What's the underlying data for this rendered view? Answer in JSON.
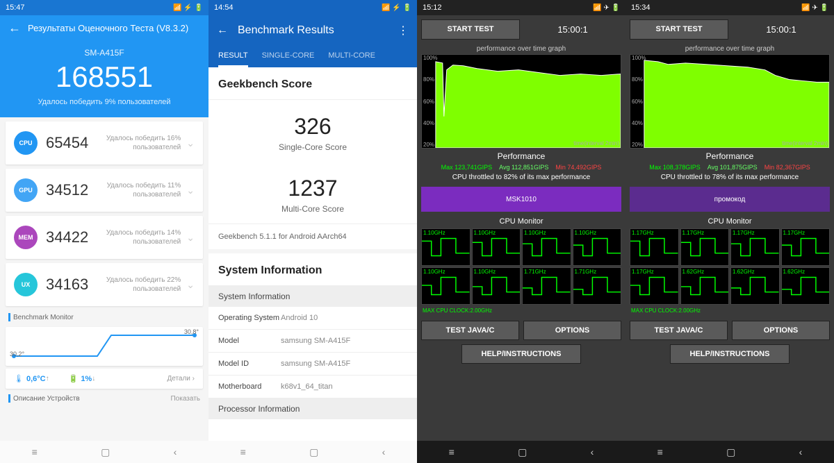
{
  "p1": {
    "status_time": "15:47",
    "title": "Результаты Оценочного Теста (V8.3.2)",
    "device": "SM-A415F",
    "total_score": "168551",
    "subtitle": "Удалось победить 9% пользователей",
    "cards": [
      {
        "badge": "CPU",
        "score": "65454",
        "pct": "Удалось победить 16%",
        "sub": "пользователей"
      },
      {
        "badge": "GPU",
        "score": "34512",
        "pct": "Удалось победить 11%",
        "sub": "пользователей"
      },
      {
        "badge": "MEM",
        "score": "34422",
        "pct": "Удалось победить 14%",
        "sub": "пользователей"
      },
      {
        "badge": "UX",
        "score": "34163",
        "pct": "Удалось победить 22%",
        "sub": "пользователей"
      }
    ],
    "monitor_label": "Benchmark Monitor",
    "chart": {
      "t0": "30,2°",
      "t1": "30,8°"
    },
    "temp_delta": "0,6°C",
    "battery_delta": "1%",
    "details": "Детали",
    "desc_label": "Описание Устройств",
    "show": "Показать"
  },
  "p2": {
    "status_time": "14:54",
    "title": "Benchmark Results",
    "tabs": [
      "RESULT",
      "SINGLE-CORE",
      "MULTI-CORE"
    ],
    "section": "Geekbench Score",
    "single": {
      "score": "326",
      "label": "Single-Core Score"
    },
    "multi": {
      "score": "1237",
      "label": "Multi-Core Score"
    },
    "version": "Geekbench 5.1.1 for Android AArch64",
    "sysinfo_h": "System Information",
    "sysinfo_sub": "System Information",
    "rows": [
      {
        "k": "Operating System",
        "v": "Android 10"
      },
      {
        "k": "Model",
        "v": "samsung SM-A415F"
      },
      {
        "k": "Model ID",
        "v": "samsung SM-A415F"
      },
      {
        "k": "Motherboard",
        "v": "k68v1_64_titan"
      }
    ],
    "proc_h": "Processor Information"
  },
  "p3": {
    "status_time": "15:12",
    "start": "START TEST",
    "timer": "15:00:1",
    "graph_label": "performance over time graph",
    "time_label": "time(interval 2min)",
    "ylabels": [
      "100%",
      "80%",
      "60%",
      "40%",
      "20%"
    ],
    "perf_h": "Performance",
    "max": "Max 123,741GIPS",
    "avg": "Avg 112,851GIPS",
    "min": "Min 74,492GIPS",
    "throttle": "CPU throttled to 82% of its max performance",
    "ad_color": "#7b2cbf",
    "ad_text": "МSK1010",
    "cpu_h": "CPU Monitor",
    "freqs_top": [
      "1.10GHz",
      "1.10GHz",
      "1.10GHz",
      "1.10GHz"
    ],
    "freqs_bot": [
      "1.10GHz",
      "1.10GHz",
      "1.71GHz",
      "1.71GHz"
    ],
    "maxclock": "MAX CPU CLOCK:2.00GHz",
    "btn_java": "TEST JAVA/C",
    "btn_opt": "OPTIONS",
    "btn_help": "HELP/INSTRUCTIONS"
  },
  "p4": {
    "status_time": "15:34",
    "start": "START TEST",
    "timer": "15:00:1",
    "graph_label": "performance over time graph",
    "time_label": "time(interval 2min)",
    "ylabels": [
      "100%",
      "80%",
      "60%",
      "40%",
      "20%"
    ],
    "perf_h": "Performance",
    "max": "Max 108,378GIPS",
    "avg": "Avg 101,875GIPS",
    "min": "Min 82,367GIPS",
    "throttle": "CPU throttled to 78% of its max performance",
    "ad_color": "#5b2c8f",
    "ad_text": "промокод",
    "cpu_h": "CPU Monitor",
    "freqs_top": [
      "1.17GHz",
      "1.17GHz",
      "1.17GHz",
      "1.17GHz"
    ],
    "freqs_bot": [
      "1.17GHz",
      "1.62GHz",
      "1.62GHz",
      "1.62GHz"
    ],
    "maxclock": "MAX CPU CLOCK:2.00GHz",
    "btn_java": "TEST JAVA/C",
    "btn_opt": "OPTIONS",
    "btn_help": "HELP/INSTRUCTIONS"
  },
  "colors": {
    "green_max": "#00ff00",
    "green_avg": "#66ff66",
    "red_min": "#ff4444",
    "graph_fill": "#7fff00"
  }
}
